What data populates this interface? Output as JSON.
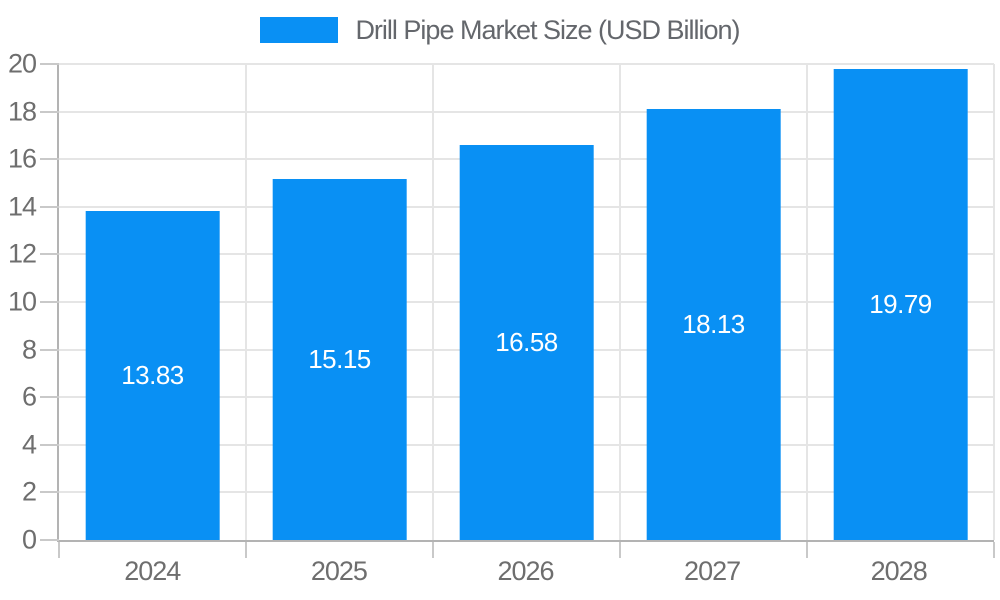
{
  "chart_data": {
    "type": "bar",
    "title": "Drill Pipe Market Size (USD Billion)",
    "categories": [
      "2024",
      "2025",
      "2026",
      "2027",
      "2028"
    ],
    "series": [
      {
        "name": "Drill Pipe Market Size (USD Billion)",
        "values": [
          13.83,
          15.15,
          16.58,
          18.13,
          19.79
        ]
      }
    ],
    "value_labels": [
      "13.83",
      "15.15",
      "16.58",
      "18.13",
      "19.79"
    ],
    "xlabel": "",
    "ylabel": "",
    "ylim": [
      0,
      20
    ],
    "ytick_step": 2,
    "ytick_labels": [
      "0",
      "2",
      "4",
      "6",
      "8",
      "10",
      "12",
      "14",
      "16",
      "18",
      "20"
    ],
    "grid": true,
    "legend_position": "top",
    "bar_width_fraction": 0.72,
    "colors": {
      "bar": "#0990f4",
      "grid": "#e5e5e5",
      "axis": "#b3b3b3",
      "tick": "#c9c9c9",
      "tick_label": "#6e6e6e",
      "legend_text": "#64676c",
      "value_label": "#ffffff",
      "background": "#ffffff"
    }
  }
}
